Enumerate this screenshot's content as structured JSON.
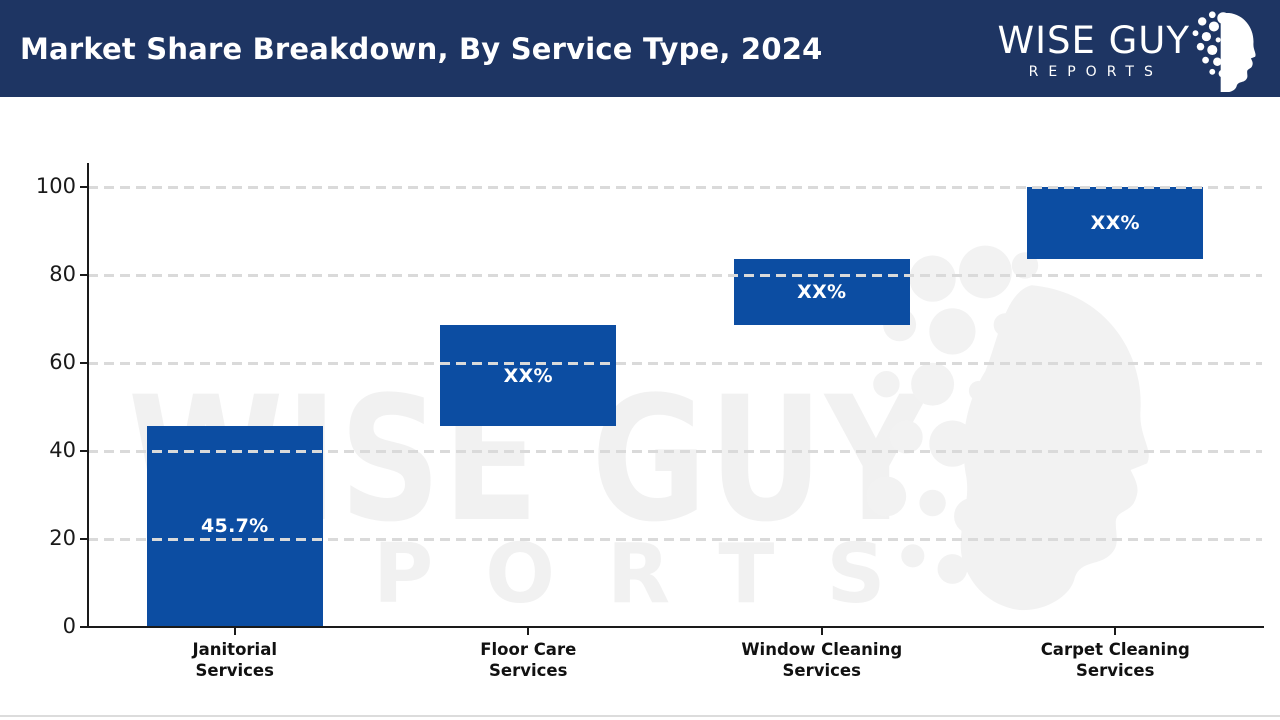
{
  "header": {
    "title": "Market Share Breakdown, By Service Type, 2024",
    "logo": {
      "line1": "WISE GUY",
      "line2": "REPORTS"
    }
  },
  "watermark": {
    "line1": "WISE GUY",
    "line2": "REPORTS"
  },
  "colors": {
    "header_bg": "#1e3563",
    "bar": "#0c4da2",
    "bar_label": "#ffffff",
    "gridline": "#dadada",
    "axis": "#1a1a1a",
    "watermark": "#f1f1f1"
  },
  "chart_data": {
    "type": "bar",
    "subtype": "floating-segment-waterfall",
    "title": "Market Share Breakdown, By Service Type, 2024",
    "categories": [
      "Janitorial Services",
      "Floor Care Services",
      "Window Cleaning Services",
      "Carpet Cleaning Services"
    ],
    "category_lines": [
      [
        "Janitorial",
        "Services"
      ],
      [
        "Floor Care",
        "Services"
      ],
      [
        "Window Cleaning",
        "Services"
      ],
      [
        "Carpet Cleaning",
        "Services"
      ]
    ],
    "segments": [
      {
        "category": "Janitorial Services",
        "from": 0,
        "to": 45.7,
        "label": "45.7%"
      },
      {
        "category": "Floor Care Services",
        "from": 45.7,
        "to": 68.6,
        "label": "XX%"
      },
      {
        "category": "Window Cleaning Services",
        "from": 68.6,
        "to": 83.6,
        "label": "XX%"
      },
      {
        "category": "Carpet Cleaning Services",
        "from": 83.6,
        "to": 100,
        "label": "XX%"
      }
    ],
    "yticks": [
      0,
      20,
      40,
      60,
      80,
      100
    ],
    "ylim": [
      0,
      105
    ],
    "xlabel": "",
    "ylabel": "",
    "grid": "horizontal-dashed",
    "legend": "none"
  }
}
